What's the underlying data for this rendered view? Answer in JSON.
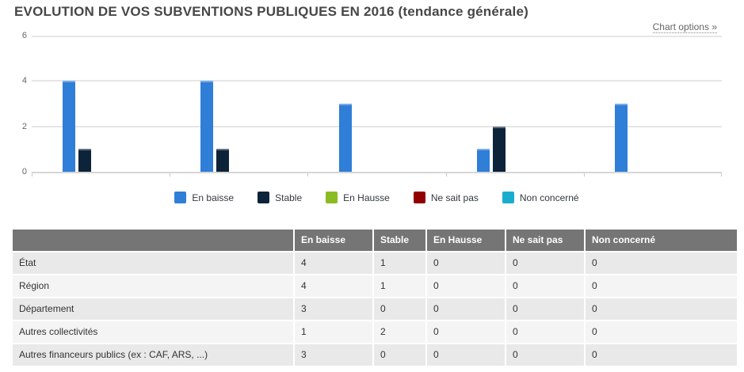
{
  "title": "EVOLUTION DE VOS SUBVENTIONS PUBLIQUES EN 2016 (tendance générale)",
  "chart_options_label": "Chart options »",
  "chart_data": {
    "type": "bar",
    "title": "EVOLUTION DE VOS SUBVENTIONS PUBLIQUES EN 2016 (tendance générale)",
    "categories": [
      "État",
      "Région",
      "Département",
      "Autres collectivités",
      "Autres financeurs publics (ex : CAF, ARS, ...)"
    ],
    "series": [
      {
        "name": "En baisse",
        "color": "#2f7ed8",
        "values": [
          4,
          4,
          3,
          1,
          3
        ]
      },
      {
        "name": "Stable",
        "color": "#0d233a",
        "values": [
          1,
          1,
          0,
          2,
          0
        ]
      },
      {
        "name": "En Hausse",
        "color": "#8bbc21",
        "values": [
          0,
          0,
          0,
          0,
          0
        ]
      },
      {
        "name": "Ne sait pas",
        "color": "#910000",
        "values": [
          0,
          0,
          0,
          0,
          0
        ]
      },
      {
        "name": "Non concerné",
        "color": "#1aadce",
        "values": [
          0,
          0,
          0,
          0,
          0
        ]
      }
    ],
    "xlabel": "",
    "ylabel": "",
    "ylim": [
      0,
      6
    ],
    "yticks": [
      0,
      2,
      4,
      6
    ],
    "grid": true,
    "legend_position": "bottom",
    "colors": {
      "gridline": "#e6e6e6",
      "axis_line": "#d6d6d6",
      "tick_label": "#666666"
    }
  },
  "table": {
    "columns": [
      "",
      "En baisse",
      "Stable",
      "En Hausse",
      "Ne sait pas",
      "Non concerné"
    ],
    "header_bg": "#757575",
    "rows": [
      {
        "label": "État",
        "values": [
          "4",
          "1",
          "0",
          "0",
          "0"
        ]
      },
      {
        "label": "Région",
        "values": [
          "4",
          "1",
          "0",
          "0",
          "0"
        ]
      },
      {
        "label": "Département",
        "values": [
          "3",
          "0",
          "0",
          "0",
          "0"
        ]
      },
      {
        "label": "Autres collectivités",
        "values": [
          "1",
          "2",
          "0",
          "0",
          "0"
        ]
      },
      {
        "label": "Autres financeurs publics (ex : CAF, ARS, ...)",
        "values": [
          "3",
          "0",
          "0",
          "0",
          "0"
        ]
      }
    ]
  }
}
